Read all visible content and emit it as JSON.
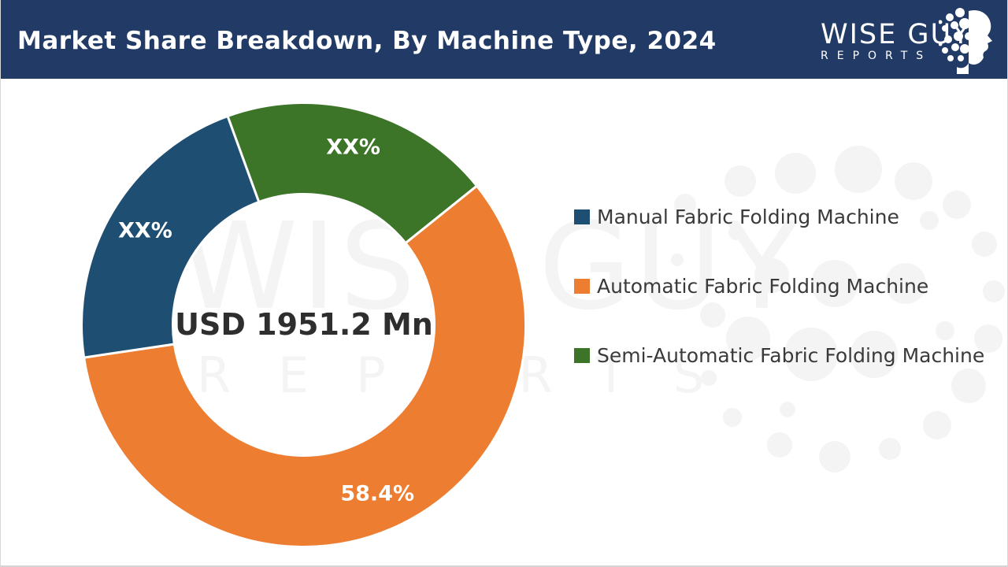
{
  "header": {
    "title": "Market Share Breakdown, By Machine Type, 2024",
    "logo": {
      "line1": "WISE GUY",
      "line2": "REPORTS"
    }
  },
  "watermark": {
    "line1": "WISE GUY",
    "line2": "REPORTS"
  },
  "colors": {
    "header_background": "#223A66",
    "blue": "#1F4E73",
    "orange": "#ED7D31",
    "green": "#3C7428",
    "legend_text": "#3A3A3A",
    "center_text": "#2E2E2E",
    "watermark": "#F4F4F4"
  },
  "chart_data": {
    "type": "donut",
    "title": "Market Share Breakdown, By Machine Type, 2024",
    "center_label": "USD 1951.2 Mn",
    "start_angle_deg": -20,
    "legend_position": "right",
    "grid": false,
    "segments": [
      {
        "name": "Semi-Automatic Fabric Folding Machine",
        "slice_label": "XX%",
        "percent": 19.8,
        "color": "#3C7428"
      },
      {
        "name": "Automatic Fabric Folding Machine",
        "slice_label": "58.4%",
        "percent": 58.4,
        "color": "#ED7D31"
      },
      {
        "name": "Manual Fabric Folding Machine",
        "slice_label": "XX%",
        "percent": 21.8,
        "color": "#1F4E73"
      }
    ],
    "legend_order": [
      2,
      1,
      0
    ]
  }
}
